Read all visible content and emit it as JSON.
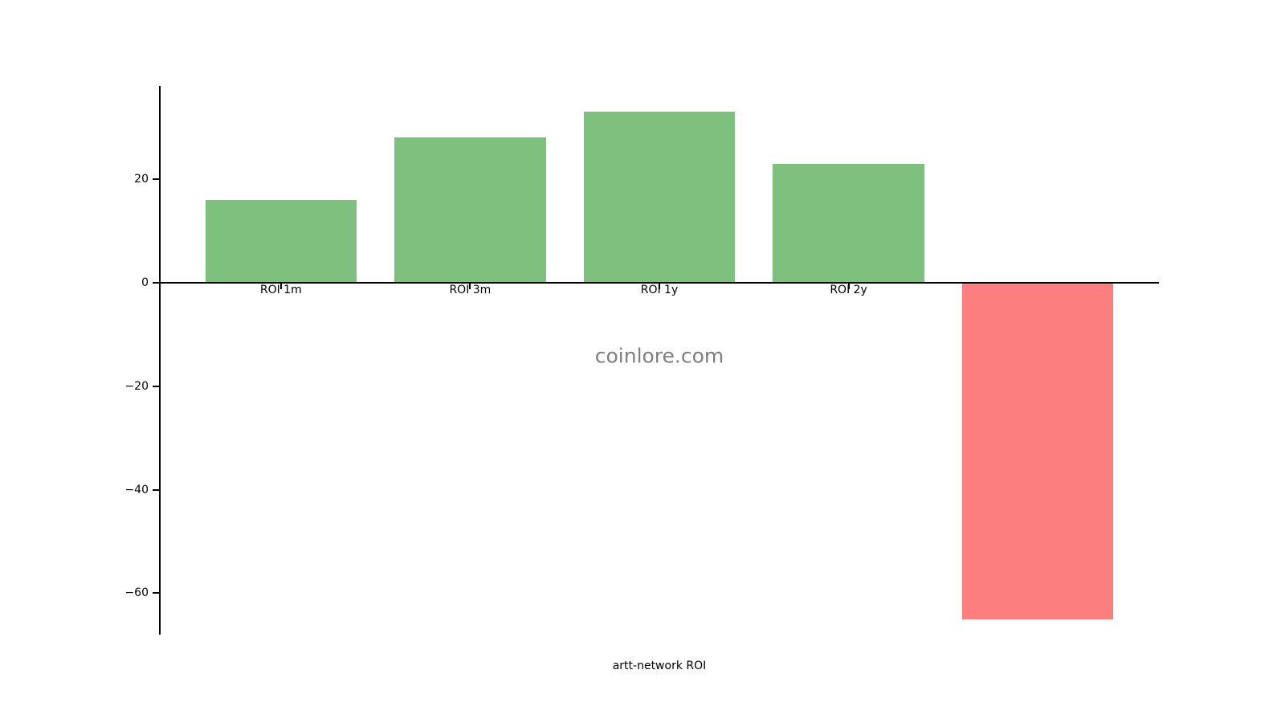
{
  "figure": {
    "background": "#ffffff"
  },
  "chart_data": {
    "type": "bar",
    "title": "",
    "xlabel": "artt-network ROI",
    "ylabel": "",
    "categories": [
      "ROI 1m",
      "ROI 3m",
      "ROI 1y",
      "ROI 2y",
      ""
    ],
    "values": [
      16,
      28,
      33,
      23,
      -65
    ],
    "bar_colors": [
      "#7ec17e",
      "#7ec17e",
      "#7ec17e",
      "#7ec17e",
      "#fc7e7e"
    ],
    "positive_color": "#7ec17e",
    "negative_color": "#fc7e7e",
    "axis_color": "#000000",
    "ylim": [
      -68,
      38
    ],
    "yticks": [
      {
        "value": 20,
        "label": "20"
      },
      {
        "value": 0,
        "label": "0"
      },
      {
        "value": -20,
        "label": "−20"
      },
      {
        "value": -40,
        "label": "−40"
      },
      {
        "value": -60,
        "label": "−60"
      }
    ],
    "grid": false,
    "legend": null,
    "watermark": "coinlore.com",
    "watermark_color": "#7f7f7f"
  }
}
